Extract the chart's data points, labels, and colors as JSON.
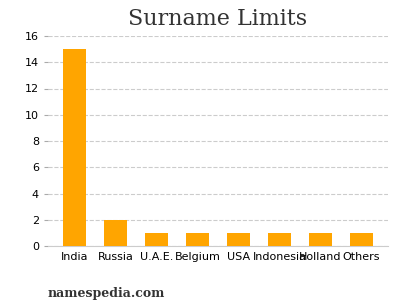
{
  "title": "Surname Limits",
  "categories": [
    "India",
    "Russia",
    "U.A.E.",
    "Belgium",
    "USA",
    "Indonesia",
    "Holland",
    "Others"
  ],
  "values": [
    15,
    2,
    1,
    1,
    1,
    1,
    1,
    1
  ],
  "bar_color": "#FFA500",
  "ylim": [
    0,
    16
  ],
  "yticks": [
    0,
    2,
    4,
    6,
    8,
    10,
    12,
    14,
    16
  ],
  "background_color": "#ffffff",
  "grid_color": "#cccccc",
  "grid_linestyle": "--",
  "title_fontsize": 16,
  "tick_fontsize": 8,
  "watermark": "namespedia.com",
  "watermark_fontsize": 9,
  "bar_width": 0.55
}
